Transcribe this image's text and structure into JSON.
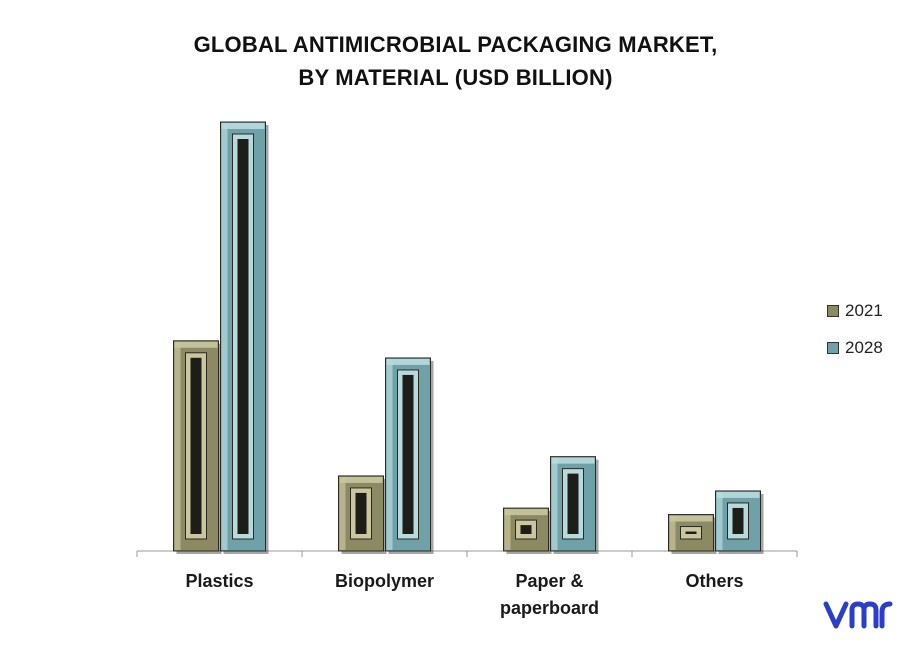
{
  "title": {
    "line1": "GLOBAL ANTIMICROBIAL PACKAGING MARKET,",
    "line2": "BY MATERIAL (USD BILLION)"
  },
  "chart_data": {
    "type": "bar",
    "categories": [
      "Plastics",
      "Biopolymer",
      "Paper & paperboard",
      "Others"
    ],
    "category_lines": [
      [
        "Plastics"
      ],
      [
        "Biopolymer"
      ],
      [
        "Paper &",
        "paperboard"
      ],
      [
        "Others"
      ]
    ],
    "series": [
      {
        "name": "2021",
        "values": [
          4.9,
          1.75,
          1.0,
          0.85
        ],
        "color": "#8c8a62",
        "light": "#c9c6a0"
      },
      {
        "name": "2028",
        "values": [
          10.0,
          4.5,
          2.2,
          1.4
        ],
        "color": "#6fa2a8",
        "light": "#b8dadd"
      }
    ],
    "ylim": [
      0,
      10
    ],
    "grid": false,
    "legend_position": "right"
  },
  "logo": {
    "icon": "vmr-logo-icon",
    "color": "#2b3ec9"
  }
}
